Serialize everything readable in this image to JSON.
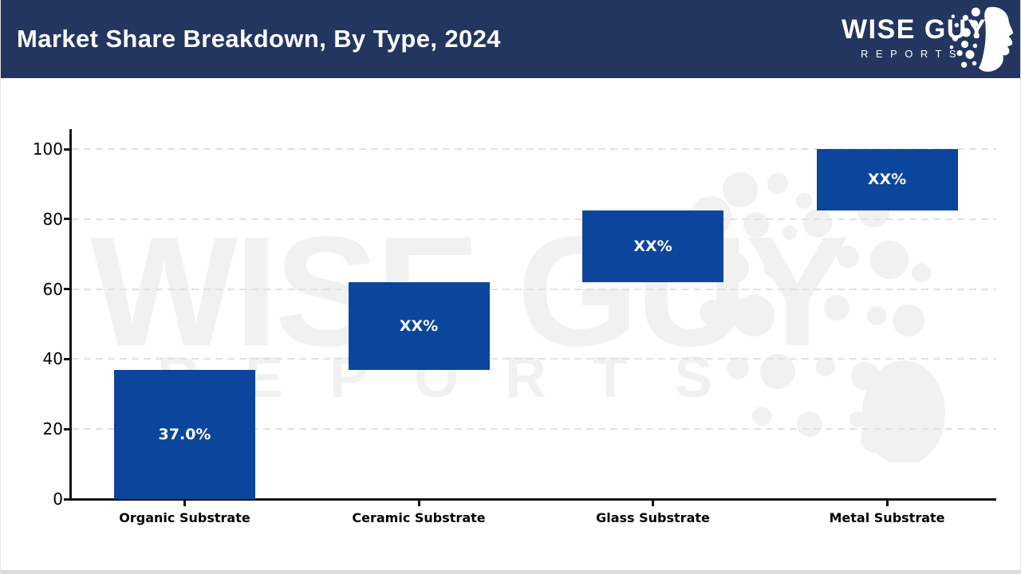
{
  "header": {
    "title": "Market Share Breakdown, By Type, 2024",
    "logo": {
      "name": "WISE GUY",
      "sub": "REPORTS"
    }
  },
  "watermark": {
    "line1": "WISE GUY",
    "line2": "REPORTS"
  },
  "chart_data": {
    "type": "bar",
    "subtype": "waterfall",
    "title": "Market Share Breakdown, By Type, 2024",
    "categories": [
      "Organic Substrate",
      "Ceramic Substrate",
      "Glass Substrate",
      "Metal Substrate"
    ],
    "segments": [
      {
        "category": "Organic Substrate",
        "start": 0,
        "end": 37,
        "label": "37.0%"
      },
      {
        "category": "Ceramic Substrate",
        "start": 37,
        "end": 62,
        "label": "XX%"
      },
      {
        "category": "Glass Substrate",
        "start": 62,
        "end": 82.5,
        "label": "XX%"
      },
      {
        "category": "Metal Substrate",
        "start": 82.5,
        "end": 100,
        "label": "XX%"
      }
    ],
    "yticks": [
      0,
      20,
      40,
      60,
      80,
      100
    ],
    "ylim": [
      0,
      105
    ],
    "xlabel": "",
    "ylabel": "",
    "grid": "horizontal-dashed",
    "legend": "none",
    "bar_color": "#0b459c",
    "bar_label_color": "#ffffff"
  },
  "colors": {
    "header_bg": "#22365f",
    "bar": "#0b459c",
    "grid": "#e1e1e1",
    "axis": "#141414",
    "watermark": "#f1f1f2",
    "bottom_strip": "#dcdcdc"
  }
}
